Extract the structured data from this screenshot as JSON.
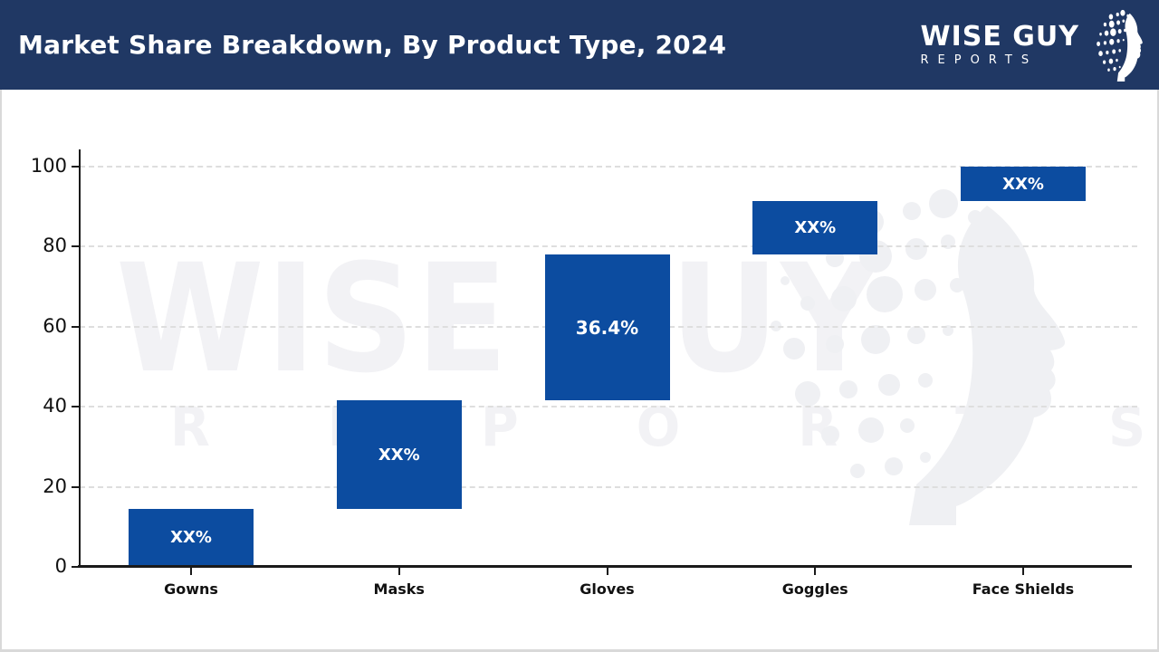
{
  "header": {
    "title": "Market Share Breakdown, By Product Type, 2024",
    "bg_color": "#203864",
    "logo": {
      "line1": "WISE GUY",
      "line2": "REPORTS"
    }
  },
  "watermark": {
    "line1": "WISE GUY",
    "line2": "R E P O R T S"
  },
  "chart_data": {
    "type": "bar",
    "subtype": "waterfall",
    "title": "Market Share Breakdown, By Product Type, 2024",
    "categories": [
      "Gowns",
      "Masks",
      "Gloves",
      "Goggles",
      "Face Shields"
    ],
    "segments": [
      {
        "category": "Gowns",
        "start": 0,
        "end": 14.5,
        "label": "XX%"
      },
      {
        "category": "Masks",
        "start": 14.5,
        "end": 41.6,
        "label": "XX%"
      },
      {
        "category": "Gloves",
        "start": 41.6,
        "end": 78.0,
        "label": "36.4%"
      },
      {
        "category": "Goggles",
        "start": 78.0,
        "end": 91.4,
        "label": "XX%"
      },
      {
        "category": "Face Shields",
        "start": 91.4,
        "end": 100.0,
        "label": "XX%"
      }
    ],
    "y_ticks": [
      "0",
      "20",
      "40",
      "60",
      "80",
      "100"
    ],
    "ylim": [
      0,
      105
    ],
    "xlabel": "",
    "ylabel": "",
    "grid": "horizontal-dashed",
    "legend": "none",
    "bar_color": "#0c4ca0",
    "bar_label_color": "#ffffff",
    "axis_color": "#1a1a1a",
    "gridline_color": "#dedede"
  }
}
